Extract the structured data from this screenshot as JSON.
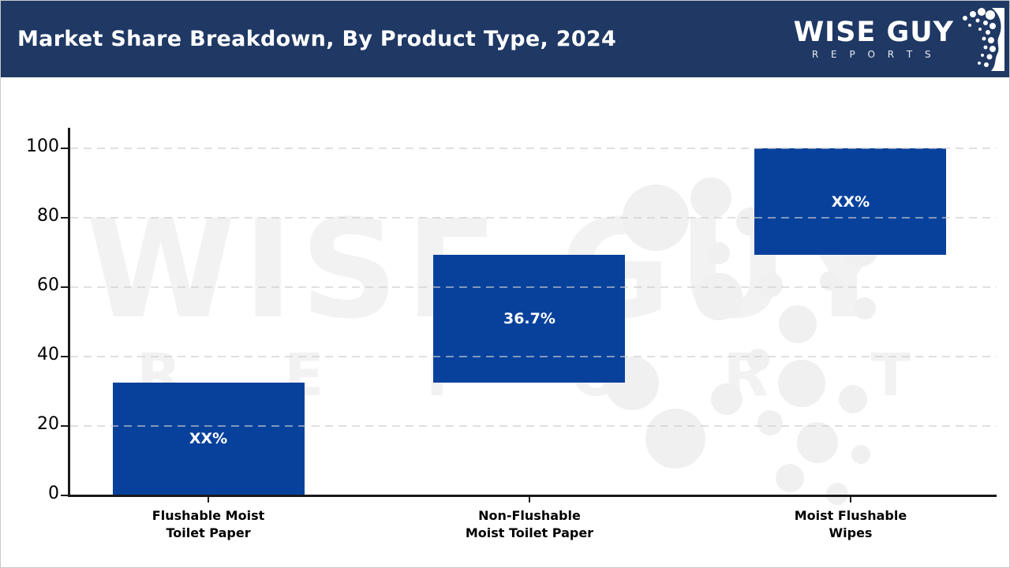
{
  "page": {
    "background": "#ffffff",
    "border_color": "#c9c9c9"
  },
  "header": {
    "background": "#1f3864",
    "title": "Market Share Breakdown, By Product Type, 2024",
    "logo_line1": "WISE GUY",
    "logo_line2": "R E P O R T S"
  },
  "watermark": {
    "line1": "WISE GUY",
    "line2": "R E P O R T S"
  },
  "chart_data": {
    "type": "bar",
    "variant": "floating stacked segments (waterfall-style market share)",
    "title": "Market Share Breakdown, By Product Type, 2024",
    "categories": [
      "Flushable Moist Toilet Paper",
      "Non-Flushable Moist Toilet Paper",
      "Moist Flushable Wipes"
    ],
    "values": [
      32.6,
      36.7,
      30.7
    ],
    "bars": [
      {
        "category_lines": [
          "Flushable Moist",
          "Toilet Paper"
        ],
        "start": 0,
        "end": 32.6,
        "label": "XX%"
      },
      {
        "category_lines": [
          "Non-Flushable",
          "Moist Toilet Paper"
        ],
        "start": 32.6,
        "end": 69.3,
        "label": "36.7%"
      },
      {
        "category_lines": [
          "Moist Flushable",
          "Wipes"
        ],
        "start": 69.3,
        "end": 100,
        "label": "XX%"
      }
    ],
    "ylim": [
      0,
      100
    ],
    "yticks": [
      0,
      20,
      40,
      60,
      80,
      100
    ],
    "xlabel": "",
    "ylabel": "",
    "grid": "horizontal dashed, drawn over bars",
    "legend": "none",
    "bar_color": "#07419c",
    "bar_label_color": "#ffffff"
  }
}
